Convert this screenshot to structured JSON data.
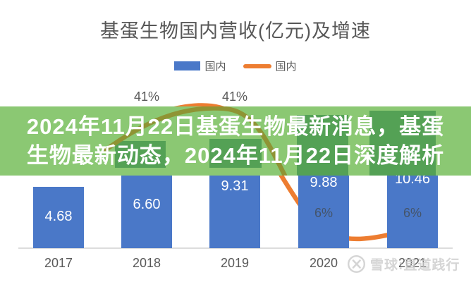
{
  "chart": {
    "title": "基蛋生物国内营收(亿元)及增速"
  },
  "chart_data": {
    "type": "combo",
    "title": "基蛋生物国内营收(亿元)及增速",
    "categories": [
      "2017",
      "2018",
      "2019",
      "2020",
      "2021"
    ],
    "series": [
      {
        "name": "国内",
        "type": "bar",
        "unit": "亿元",
        "values": [
          4.68,
          6.6,
          9.31,
          9.88,
          10.46
        ],
        "data_labels": [
          "4.68",
          "6.60",
          "9.31",
          "9.88",
          "10.46"
        ],
        "color": "#4a78c8"
      },
      {
        "name": "国内",
        "type": "line",
        "unit": "%",
        "smooth": true,
        "values": [
          null,
          41,
          41,
          6,
          6
        ],
        "data_labels": [
          "",
          "41%",
          "41%",
          "6%",
          "6%"
        ],
        "color": "#ed7d31"
      }
    ],
    "ylabel": "",
    "xlabel": "",
    "bar_axis_min": 0,
    "grid": false,
    "legend_position": "top"
  },
  "overlay": {
    "line1": "2024年11月22日基蛋生物最新消息，基蛋",
    "line2": "生物最新动态，2024年11月22日深度解析",
    "background": "#8bc873",
    "text_color": "#ffffff",
    "column_color": "#4f9d52",
    "curve_color": "#8f9434"
  },
  "watermark": {
    "site_name": "雪球",
    "separator": ":",
    "user_name": "直道践行"
  },
  "colors": {
    "bar_blue": "#4a78c8",
    "line_orange": "#ed7d31",
    "title_gray": "#575757",
    "low_growth_label": "#44546a"
  }
}
